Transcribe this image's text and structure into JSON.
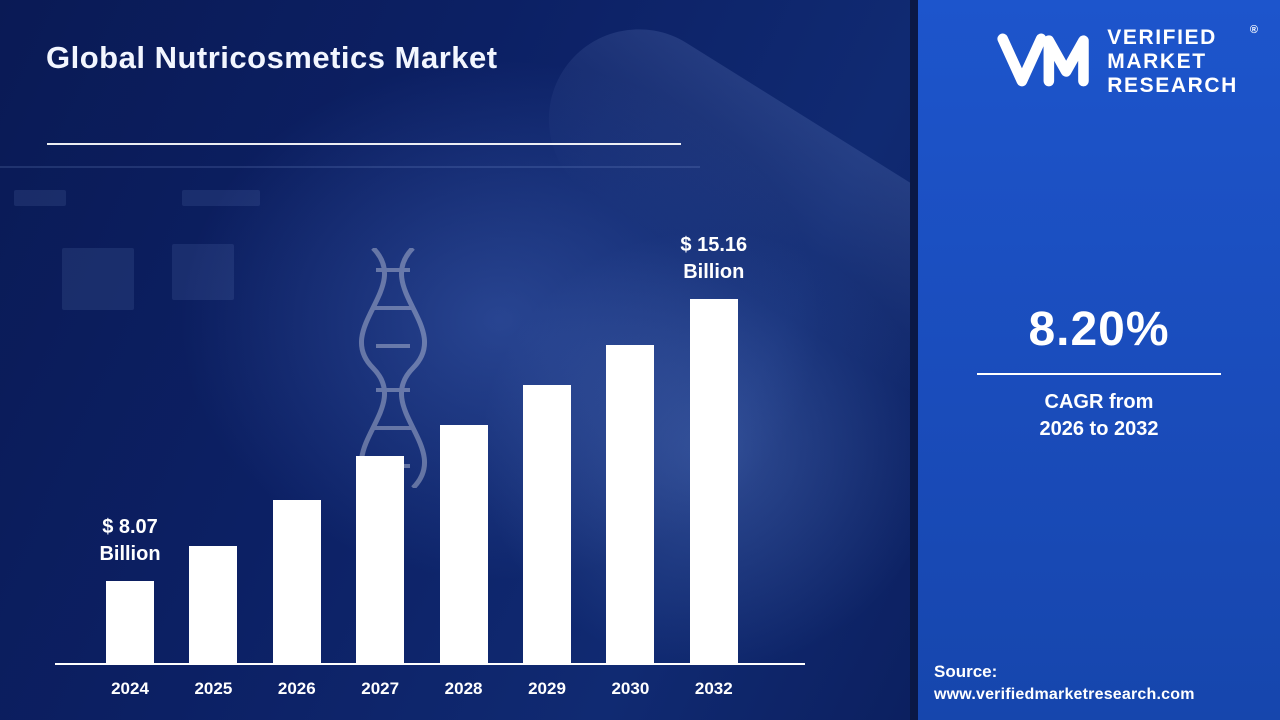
{
  "title": "Global Nutricosmetics Market",
  "logo": {
    "lines": [
      "VERIFIED",
      "MARKET",
      "RESEARCH"
    ],
    "registered": "®"
  },
  "sidebar": {
    "cagr_value": "8.20%",
    "cagr_line1": "CAGR from",
    "cagr_line2": "2026 to 2032",
    "source_label": "Source:",
    "source_url": "www.verifiedmarketresearch.com"
  },
  "colors": {
    "bar": "#ffffff",
    "panel_blue": "#1a4fc0",
    "background_navy": "#0c2064",
    "text": "#ffffff"
  },
  "chart_data": {
    "type": "bar",
    "title": "Global Nutricosmetics Market",
    "unit": "USD Billion",
    "categories": [
      "2024",
      "2025",
      "2026",
      "2027",
      "2028",
      "2029",
      "2030",
      "2032"
    ],
    "values": [
      8.07,
      8.95,
      10.1,
      11.2,
      12.0,
      13.0,
      14.0,
      15.16
    ],
    "bar_labels": [
      {
        "category": "2024",
        "lines": [
          "$ 8.07",
          "Billion"
        ]
      },
      {
        "category": "2032",
        "lines": [
          "$ 15.16",
          "Billion"
        ]
      }
    ],
    "ylim": [
      6.0,
      15.16
    ],
    "grid": false,
    "legend": false,
    "bar_color": "#ffffff",
    "axis_color": "#ffffff"
  }
}
